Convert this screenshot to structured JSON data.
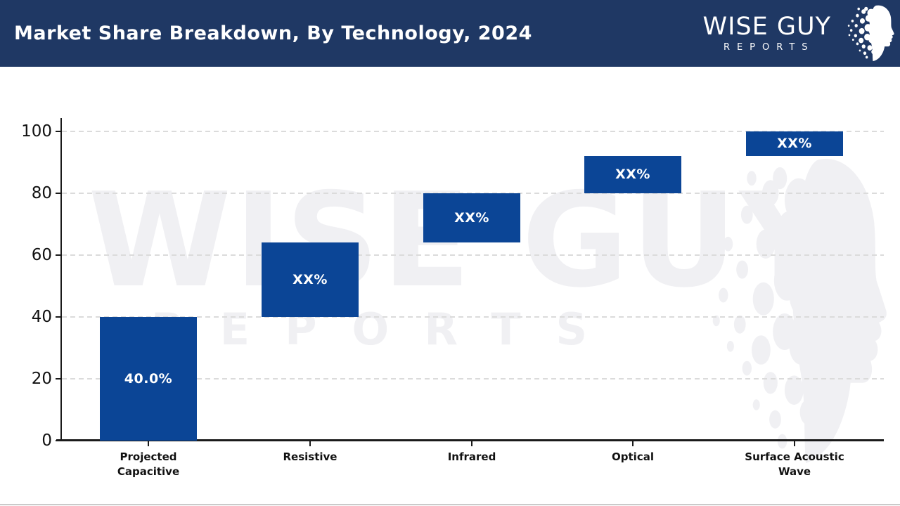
{
  "header": {
    "title": "Market Share Breakdown, By Technology, 2024",
    "logo": {
      "brand_line1": "WISE GUY",
      "brand_line2": "REPORTS",
      "icon": "dotted-head-profile"
    }
  },
  "watermark": {
    "line1": "WISE GUY",
    "line2": "REPORTS"
  },
  "colors": {
    "header_bg": "#1F3864",
    "bar": "#0B4596",
    "axis": "#1A1A1A",
    "grid": "#DBDBDB",
    "bar_label_text": "#FFFFFF",
    "watermark": "#F0F0F3"
  },
  "chart_data": {
    "type": "bar",
    "variant": "waterfall",
    "title": "Market Share Breakdown, By Technology, 2024",
    "xlabel": "",
    "ylabel": "",
    "ylim": [
      0,
      100
    ],
    "yticks": [
      0,
      20,
      40,
      60,
      80,
      100
    ],
    "grid": "horizontal dashed",
    "legend": "none",
    "bar_color": "#0B4596",
    "bars": [
      {
        "category": "Projected Capacitive",
        "category_lines": [
          "Projected",
          "Capacitive"
        ],
        "start": 0,
        "end": 40,
        "label": "40.0%"
      },
      {
        "category": "Resistive",
        "category_lines": [
          "Resistive"
        ],
        "start": 40,
        "end": 64,
        "label": "XX%"
      },
      {
        "category": "Infrared",
        "category_lines": [
          "Infrared"
        ],
        "start": 64,
        "end": 80,
        "label": "XX%"
      },
      {
        "category": "Optical",
        "category_lines": [
          "Optical"
        ],
        "start": 80,
        "end": 92,
        "label": "XX%"
      },
      {
        "category": "Surface Acoustic Wave",
        "category_lines": [
          "Surface Acoustic",
          "Wave"
        ],
        "start": 92,
        "end": 100,
        "label": "XX%"
      }
    ]
  }
}
